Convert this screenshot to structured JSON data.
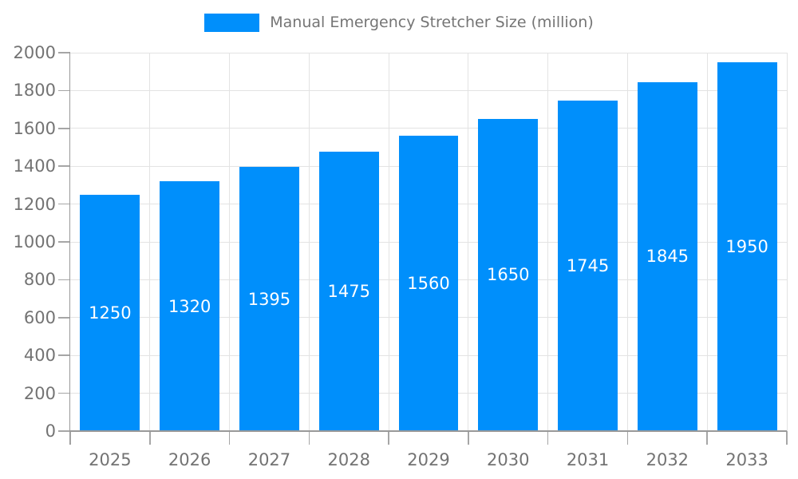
{
  "chart_data": {
    "type": "bar",
    "title": "Manual Emergency Stretcher Size (million)",
    "legend": [
      "Manual Emergency Stretcher Size (million)"
    ],
    "legend_position": "top-center",
    "categories": [
      "2025",
      "2026",
      "2027",
      "2028",
      "2029",
      "2030",
      "2031",
      "2032",
      "2033"
    ],
    "values": [
      1250,
      1320,
      1395,
      1475,
      1560,
      1650,
      1745,
      1845,
      1950
    ],
    "xlabel": "",
    "ylabel": "",
    "ylim": [
      0,
      2000
    ],
    "ytick_step": 200,
    "grid": true,
    "bar_color": "#008ffb",
    "value_label_color": "#ffffff",
    "axis_label_color": "#737373",
    "legend_text_color": "#757575",
    "gridline_color": "#e3e3e3",
    "axis_color": "#999999",
    "tick_color": "#a6a6a6",
    "background_color": "#ffffff"
  }
}
